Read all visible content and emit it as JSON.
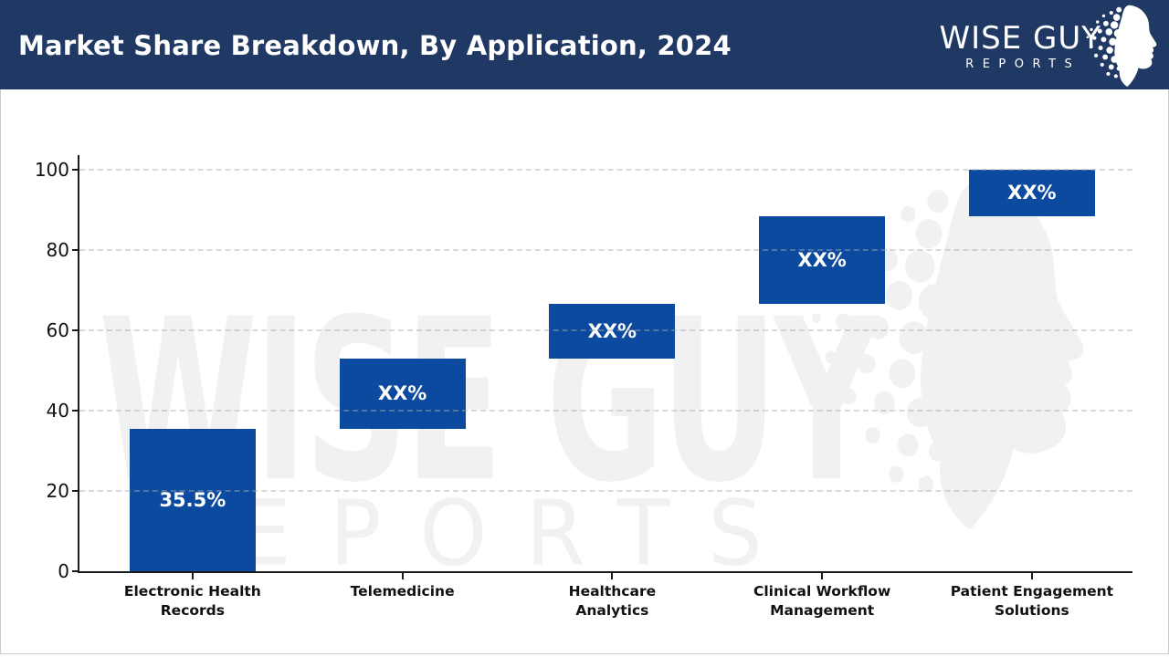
{
  "header": {
    "title": "Market Share Breakdown, By Application, 2024"
  },
  "logo": {
    "name": "WISE GUY",
    "sub": "REPORTS"
  },
  "watermark": {
    "line1": "WISE GUY",
    "line2": "REPORTS"
  },
  "colors": {
    "header_bg": "#203864",
    "header_text": "#ffffff",
    "bar": "#0b4a9e",
    "bar_label": "#ffffff",
    "axis": "#1a1a1a",
    "tick_text": "#111111",
    "watermark": "#f1f1f4"
  },
  "chart_data": {
    "type": "bar",
    "subtype": "waterfall",
    "title": "Market Share Breakdown, By Application, 2024",
    "ylabel": "",
    "xlabel": "",
    "ylim": [
      0,
      100
    ],
    "yticks": [
      0,
      20,
      40,
      60,
      80,
      100
    ],
    "grid": "horizontal-dashed",
    "legend": "none",
    "categories": [
      "Electronic Health\nRecords",
      "Telemedicine",
      "Healthcare\nAnalytics",
      "Clinical Workflow\nManagement",
      "Patient Engagement\nSolutions"
    ],
    "segments": [
      {
        "category": "Electronic Health Records",
        "start": 0,
        "end": 35.5,
        "label": "35.5%"
      },
      {
        "category": "Telemedicine",
        "start": 35.5,
        "end": 53,
        "label": "XX%"
      },
      {
        "category": "Healthcare Analytics",
        "start": 53,
        "end": 66.5,
        "label": "XX%"
      },
      {
        "category": "Clinical Workflow Management",
        "start": 66.5,
        "end": 88.5,
        "label": "XX%"
      },
      {
        "category": "Patient Engagement Solutions",
        "start": 88.5,
        "end": 100,
        "label": "XX%"
      }
    ]
  }
}
